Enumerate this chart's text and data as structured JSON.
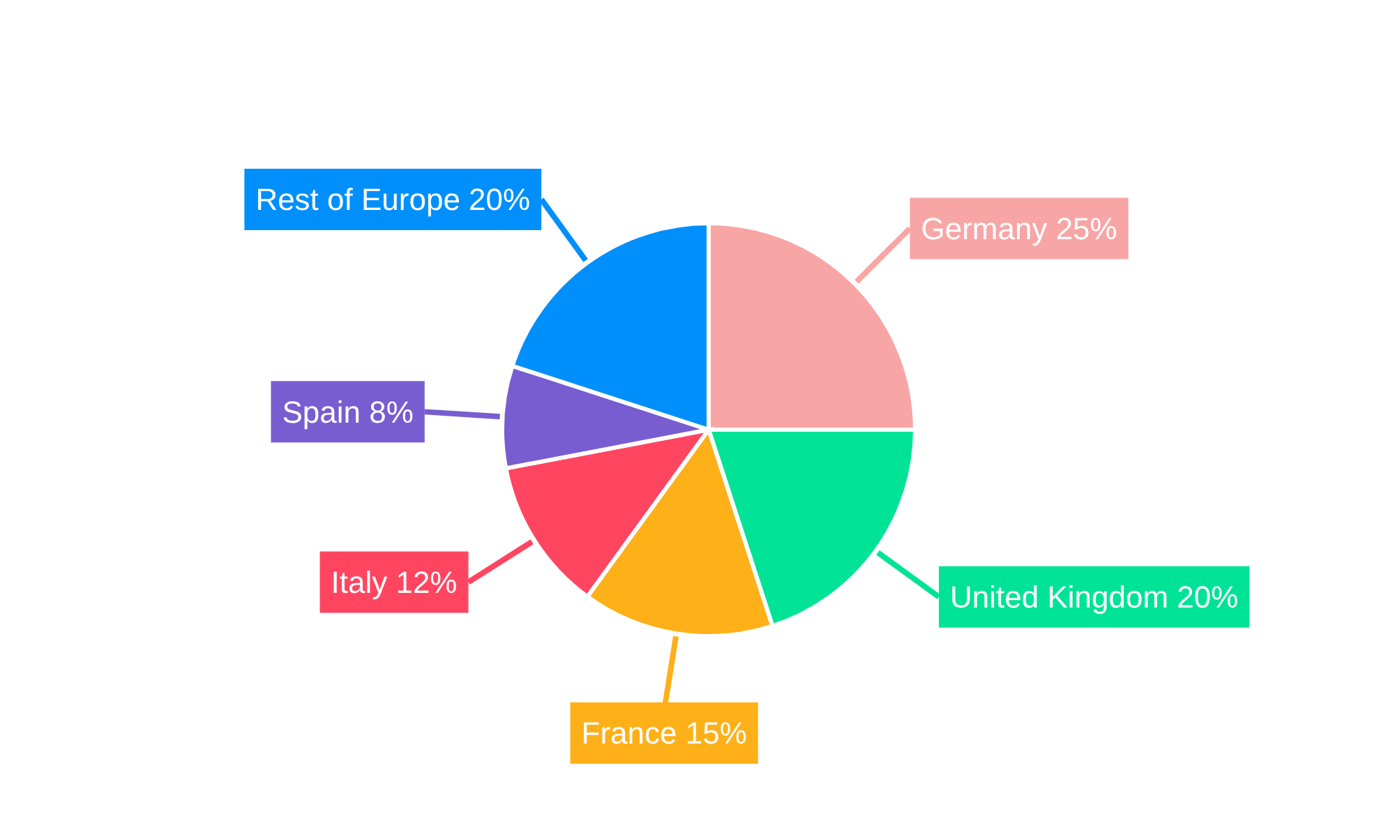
{
  "chart_data": {
    "type": "pie",
    "categories": [
      "Germany",
      "United Kingdom",
      "France",
      "Italy",
      "Spain",
      "Rest of Europe"
    ],
    "values": [
      25,
      20,
      15,
      12,
      8,
      20
    ],
    "value_labels": [
      "25%",
      "20%",
      "15%",
      "12%",
      "8%",
      "20%"
    ],
    "colors": [
      "#f8a5a6",
      "#00e396",
      "#feb019",
      "#ff4560",
      "#775dd0",
      "#008ffb"
    ]
  }
}
